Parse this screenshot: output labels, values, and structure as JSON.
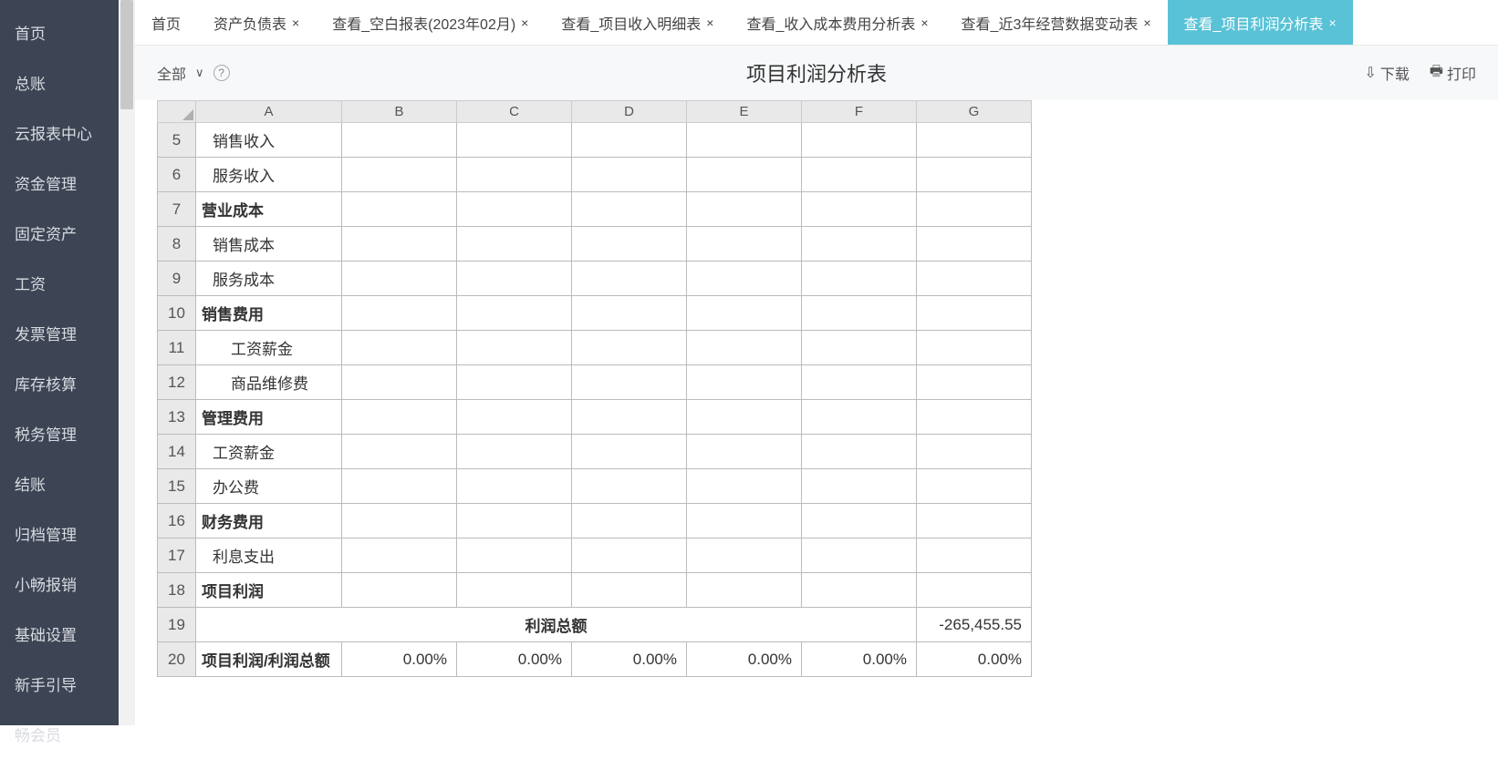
{
  "sidebar": {
    "items": [
      {
        "label": "首页"
      },
      {
        "label": "总账"
      },
      {
        "label": "云报表中心"
      },
      {
        "label": "资金管理"
      },
      {
        "label": "固定资产"
      },
      {
        "label": "工资"
      },
      {
        "label": "发票管理"
      },
      {
        "label": "库存核算"
      },
      {
        "label": "税务管理"
      },
      {
        "label": "结账"
      },
      {
        "label": "归档管理"
      },
      {
        "label": "小畅报销"
      },
      {
        "label": "基础设置"
      },
      {
        "label": "新手引导"
      },
      {
        "label": "畅会员"
      }
    ]
  },
  "tabs": [
    {
      "label": "首页",
      "closable": false,
      "active": false
    },
    {
      "label": "资产负债表",
      "closable": true,
      "active": false
    },
    {
      "label": "查看_空白报表(2023年02月)",
      "closable": true,
      "active": false
    },
    {
      "label": "查看_项目收入明细表",
      "closable": true,
      "active": false
    },
    {
      "label": "查看_收入成本费用分析表",
      "closable": true,
      "active": false
    },
    {
      "label": "查看_近3年经营数据变动表",
      "closable": true,
      "active": false
    },
    {
      "label": "查看_项目利润分析表",
      "closable": true,
      "active": true
    }
  ],
  "toolbar": {
    "filter_label": "全部",
    "title": "项目利润分析表",
    "download_label": "下载",
    "print_label": "打印"
  },
  "sheet": {
    "col_headers": [
      "A",
      "B",
      "C",
      "D",
      "E",
      "F",
      "G"
    ],
    "row_start": 5,
    "rows": [
      {
        "n": 5,
        "a": "销售收入",
        "indent": 1,
        "bold": false,
        "cells": [
          "",
          "",
          "",
          "",
          "",
          ""
        ]
      },
      {
        "n": 6,
        "a": "服务收入",
        "indent": 1,
        "bold": false,
        "cells": [
          "",
          "",
          "",
          "",
          "",
          ""
        ]
      },
      {
        "n": 7,
        "a": "营业成本",
        "indent": 0,
        "bold": true,
        "cells": [
          "",
          "",
          "",
          "",
          "",
          ""
        ]
      },
      {
        "n": 8,
        "a": "销售成本",
        "indent": 1,
        "bold": false,
        "cells": [
          "",
          "",
          "",
          "",
          "",
          ""
        ]
      },
      {
        "n": 9,
        "a": "服务成本",
        "indent": 1,
        "bold": false,
        "cells": [
          "",
          "",
          "",
          "",
          "",
          ""
        ]
      },
      {
        "n": 10,
        "a": "销售费用",
        "indent": 0,
        "bold": true,
        "cells": [
          "",
          "",
          "",
          "",
          "",
          ""
        ]
      },
      {
        "n": 11,
        "a": "工资薪金",
        "indent": 2,
        "bold": false,
        "cells": [
          "",
          "",
          "",
          "",
          "",
          ""
        ]
      },
      {
        "n": 12,
        "a": "商品维修费",
        "indent": 2,
        "bold": false,
        "cells": [
          "",
          "",
          "",
          "",
          "",
          ""
        ]
      },
      {
        "n": 13,
        "a": "管理费用",
        "indent": 0,
        "bold": true,
        "cells": [
          "",
          "",
          "",
          "",
          "",
          ""
        ]
      },
      {
        "n": 14,
        "a": "工资薪金",
        "indent": 1,
        "bold": false,
        "cells": [
          "",
          "",
          "",
          "",
          "",
          ""
        ]
      },
      {
        "n": 15,
        "a": "办公费",
        "indent": 1,
        "bold": false,
        "cells": [
          "",
          "",
          "",
          "",
          "",
          ""
        ]
      },
      {
        "n": 16,
        "a": "财务费用",
        "indent": 0,
        "bold": true,
        "cells": [
          "",
          "",
          "",
          "",
          "",
          ""
        ]
      },
      {
        "n": 17,
        "a": "利息支出",
        "indent": 1,
        "bold": false,
        "cells": [
          "",
          "",
          "",
          "",
          "",
          ""
        ]
      },
      {
        "n": 18,
        "a": "项目利润",
        "indent": 0,
        "bold": true,
        "cells": [
          "",
          "",
          "",
          "",
          "",
          ""
        ]
      }
    ],
    "total_row": {
      "n": 19,
      "label": "利润总额",
      "value": "-265,455.55"
    },
    "pct_row": {
      "n": 20,
      "a": "项目利润/利润总额",
      "cells": [
        "0.00%",
        "0.00%",
        "0.00%",
        "0.00%",
        "0.00%",
        "0.00%"
      ]
    }
  }
}
